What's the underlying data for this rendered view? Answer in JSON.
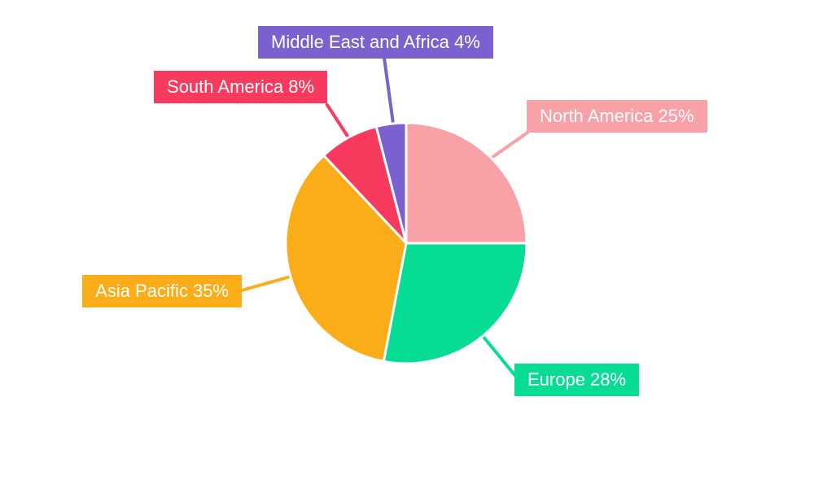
{
  "chart_data": {
    "type": "pie",
    "title": "",
    "legend_position": "none",
    "labels_as_callouts": true,
    "background_color": "#ffffff",
    "slice_border_color": "#ffffff",
    "direction": "clockwise",
    "start_angle_deg": 0,
    "series": [
      {
        "name": "North America",
        "value": 25,
        "color": "#f8a1a7",
        "label": "North America 25%"
      },
      {
        "name": "Europe",
        "value": 28,
        "color": "#06dc95",
        "label": "Europe 28%"
      },
      {
        "name": "Asia Pacific",
        "value": 35,
        "color": "#fbad19",
        "label": "Asia Pacific 35%"
      },
      {
        "name": "South America",
        "value": 8,
        "color": "#f93a5f",
        "label": "South America 8%"
      },
      {
        "name": "Middle East and Africa",
        "value": 4,
        "color": "#7b61d0",
        "label": "Middle East and Africa 4%"
      }
    ]
  }
}
